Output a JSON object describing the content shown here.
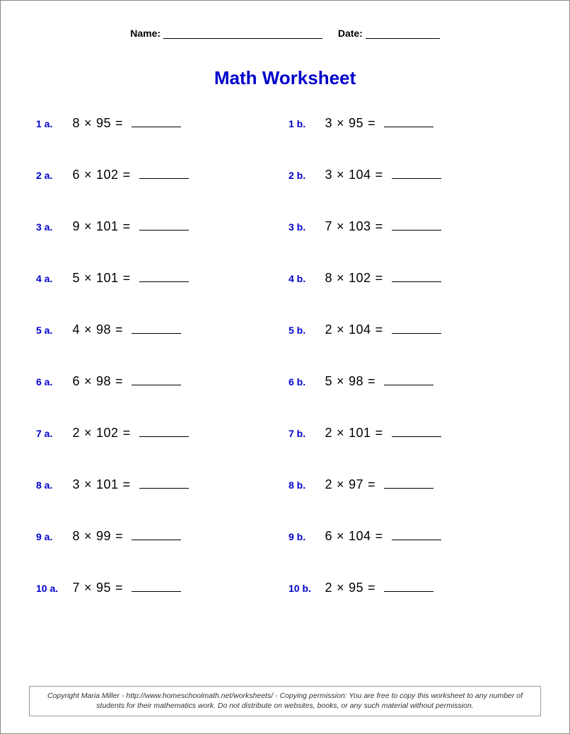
{
  "header": {
    "name_label": "Name:",
    "date_label": "Date:"
  },
  "title": "Math Worksheet",
  "colors": {
    "accent": "#0000cc",
    "text": "#000000",
    "border": "#999999",
    "background": "#ffffff"
  },
  "typography": {
    "title_fontsize": 26,
    "label_fontsize": 14,
    "problem_fontsize": 18,
    "footer_fontsize": 10.5
  },
  "operator_symbol": "×",
  "equals_symbol": "=",
  "problems": [
    {
      "label": "1 a.",
      "a": 8,
      "b": 95
    },
    {
      "label": "1 b.",
      "a": 3,
      "b": 95
    },
    {
      "label": "2 a.",
      "a": 6,
      "b": 102
    },
    {
      "label": "2 b.",
      "a": 3,
      "b": 104
    },
    {
      "label": "3 a.",
      "a": 9,
      "b": 101
    },
    {
      "label": "3 b.",
      "a": 7,
      "b": 103
    },
    {
      "label": "4 a.",
      "a": 5,
      "b": 101
    },
    {
      "label": "4 b.",
      "a": 8,
      "b": 102
    },
    {
      "label": "5 a.",
      "a": 4,
      "b": 98
    },
    {
      "label": "5 b.",
      "a": 2,
      "b": 104
    },
    {
      "label": "6 a.",
      "a": 6,
      "b": 98
    },
    {
      "label": "6 b.",
      "a": 5,
      "b": 98
    },
    {
      "label": "7 a.",
      "a": 2,
      "b": 102
    },
    {
      "label": "7 b.",
      "a": 2,
      "b": 101
    },
    {
      "label": "8 a.",
      "a": 3,
      "b": 101
    },
    {
      "label": "8 b.",
      "a": 2,
      "b": 97
    },
    {
      "label": "9 a.",
      "a": 8,
      "b": 99
    },
    {
      "label": "9 b.",
      "a": 6,
      "b": 104
    },
    {
      "label": "10 a.",
      "a": 7,
      "b": 95
    },
    {
      "label": "10 b.",
      "a": 2,
      "b": 95
    }
  ],
  "footer": "Copyright Maria Miller - http://www.homeschoolmath.net/worksheets/ - Copying permission: You are free to copy this worksheet to any number of students for their mathematics work. Do not distribute on websites, books, or any such material without permission."
}
